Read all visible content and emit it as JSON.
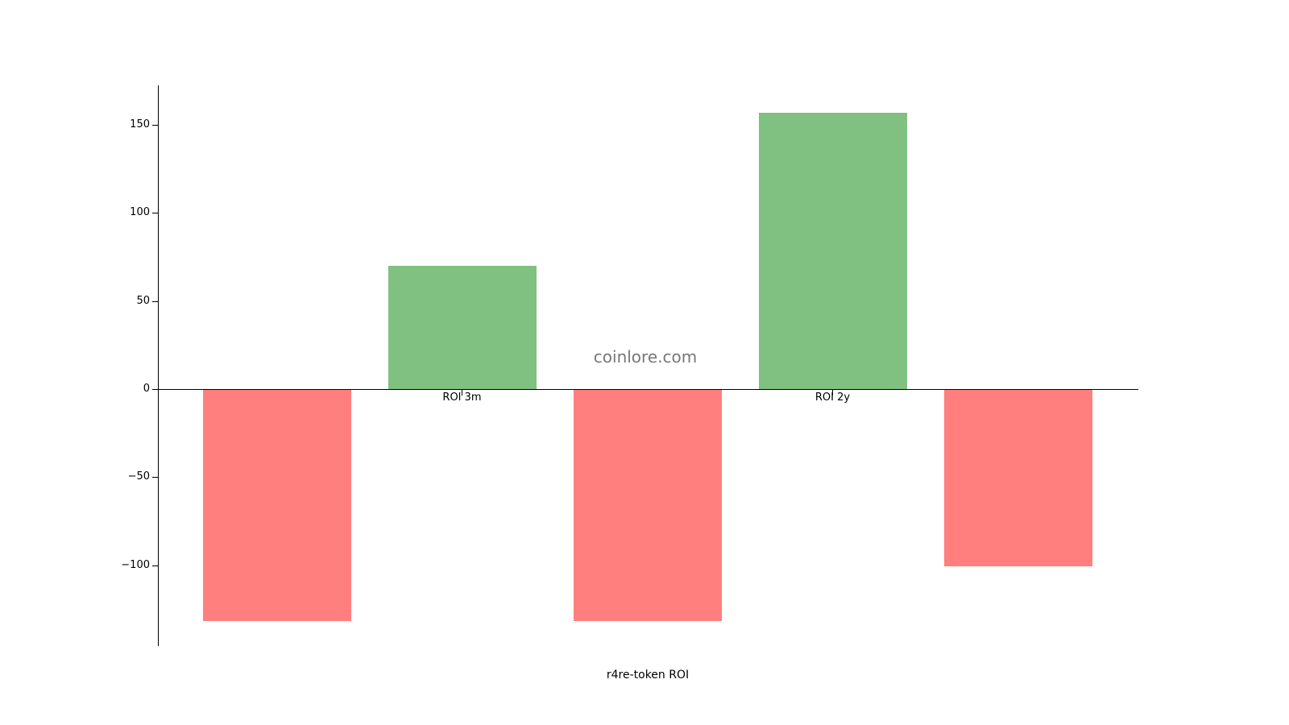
{
  "watermark": {
    "text": "coinlore.com",
    "color": "#777777"
  },
  "title": {
    "text": "r4re-token ROI",
    "color": "#000000"
  },
  "colors": {
    "positive_bar": "#80c080",
    "negative_bar": "#ff7f7f",
    "axis": "#000000",
    "tick_label": "#000000"
  },
  "y_axis": {
    "tick_values": [
      150,
      100,
      50,
      0,
      -50,
      -100
    ],
    "tick_labels": [
      "150",
      "100",
      "50",
      "0",
      "−50",
      "−100"
    ]
  },
  "x_axis": {
    "visible_labels": [
      {
        "bar_index": 1,
        "label": "ROI 3m"
      },
      {
        "bar_index": 3,
        "label": "ROI 2y"
      }
    ]
  },
  "chart_data": {
    "type": "bar",
    "title": "r4re-token ROI",
    "watermark": "coinlore.com",
    "categories": [
      "",
      "ROI 3m",
      "",
      "ROI 2y",
      ""
    ],
    "values": [
      -131,
      70,
      -131,
      157,
      -100
    ],
    "bar_colors": [
      "#ff7f7f",
      "#80c080",
      "#ff7f7f",
      "#80c080",
      "#ff7f7f"
    ],
    "yticks": [
      150,
      100,
      50,
      0,
      -50,
      -100
    ],
    "ylim": [
      -146,
      172
    ],
    "grid": false,
    "legend": "none"
  }
}
